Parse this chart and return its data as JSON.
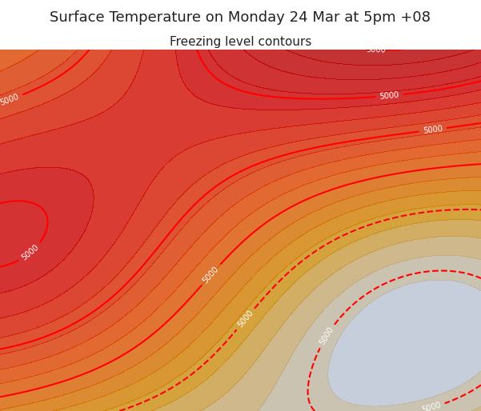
{
  "title": "Surface Temperature on Monday 24 Mar at 5pm +08",
  "subtitle": "Freezing level contours",
  "title_fontsize": 13,
  "subtitle_fontsize": 11,
  "title_color": "#222222",
  "background_color": "#b8c8e8",
  "border_color": "#cccccc",
  "map_extent": [
    95,
    135,
    -12,
    22
  ],
  "ocean_color": "#b8c8e8",
  "contour_color": "#ff0000",
  "contour_label": "5000",
  "contour_label_color": "#ffffff",
  "fig_width": 6.01,
  "fig_height": 5.14,
  "dpi": 100
}
